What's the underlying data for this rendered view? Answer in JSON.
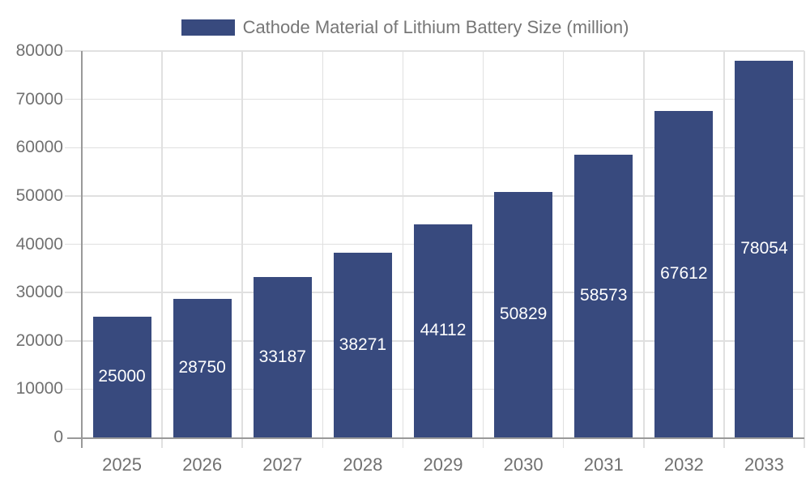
{
  "chart_data": {
    "type": "bar",
    "title": "Cathode Material of Lithium Battery Size (million)",
    "legend": {
      "label": "Cathode Material of Lithium Battery Size (million)",
      "position": "top-center"
    },
    "categories": [
      "2025",
      "2026",
      "2027",
      "2028",
      "2029",
      "2030",
      "2031",
      "2032",
      "2033"
    ],
    "values": [
      25000,
      28750,
      33187,
      38271,
      44112,
      50829,
      58573,
      67612,
      78054
    ],
    "xlabel": "",
    "ylabel": "",
    "y_axis": {
      "min": 0,
      "max": 80000,
      "tick_interval": 10000,
      "ticks": [
        0,
        10000,
        20000,
        30000,
        40000,
        50000,
        60000,
        70000,
        80000
      ]
    },
    "grid": {
      "horizontal": true,
      "vertical": true
    },
    "value_labels": {
      "position": "inside-middle",
      "color": "#ffffff"
    },
    "colors": {
      "bar": "#384A7E",
      "grid": "#E0E0E0",
      "axis": "#999999",
      "tick_label": "#717171",
      "legend_text": "#767676",
      "value_label": "#FFFFFF",
      "background": "#FFFFFF"
    }
  }
}
